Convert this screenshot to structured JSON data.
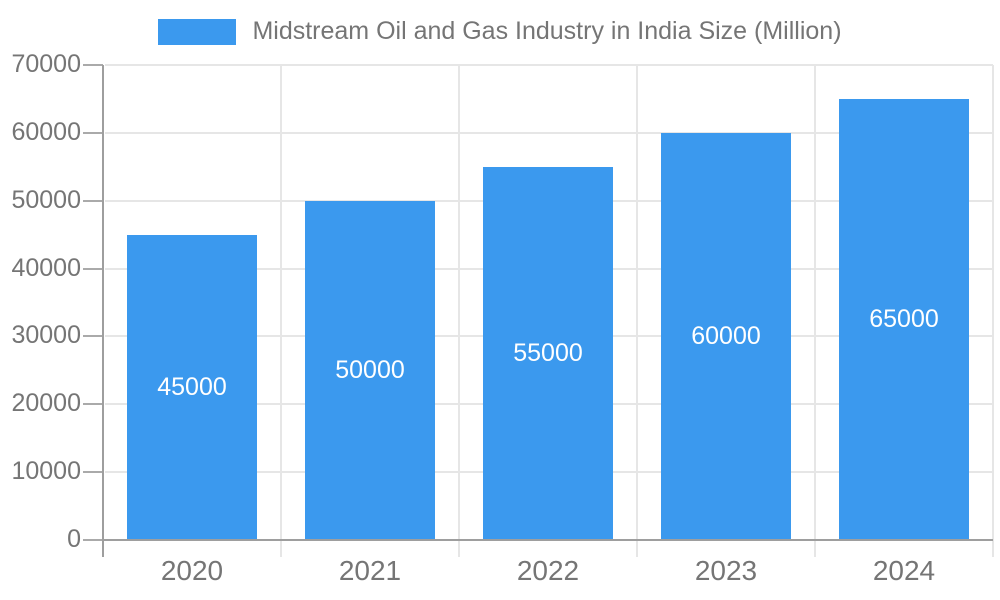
{
  "page": {
    "background": "#ffffff"
  },
  "legend": {
    "label": "Midstream Oil and Gas Industry in India Size (Million)",
    "swatch_color": "#3b99ee"
  },
  "colors": {
    "bar": "#3b99ee",
    "bar_label": "#ffffff",
    "grid": "#e6e6e6",
    "axis": "#9e9e9e",
    "tick": "#aaaaaa",
    "text": "#757575",
    "background": "#ffffff"
  },
  "chart_data": {
    "type": "bar",
    "title": "Midstream Oil and Gas Industry in India Size (Million)",
    "legend_position": "top",
    "categories": [
      "2020",
      "2021",
      "2022",
      "2023",
      "2024"
    ],
    "series": [
      {
        "name": "Midstream Oil and Gas Industry in India Size (Million)",
        "color": "#3b99ee",
        "values": [
          45000,
          50000,
          55000,
          60000,
          65000
        ]
      }
    ],
    "bar_value_labels": [
      "45000",
      "50000",
      "55000",
      "60000",
      "65000"
    ],
    "xlabel": "",
    "ylabel": "",
    "ylim": [
      0,
      70000
    ],
    "yticks": [
      0,
      10000,
      20000,
      30000,
      40000,
      50000,
      60000,
      70000
    ],
    "grid": true,
    "bar_labels_inside": true
  }
}
